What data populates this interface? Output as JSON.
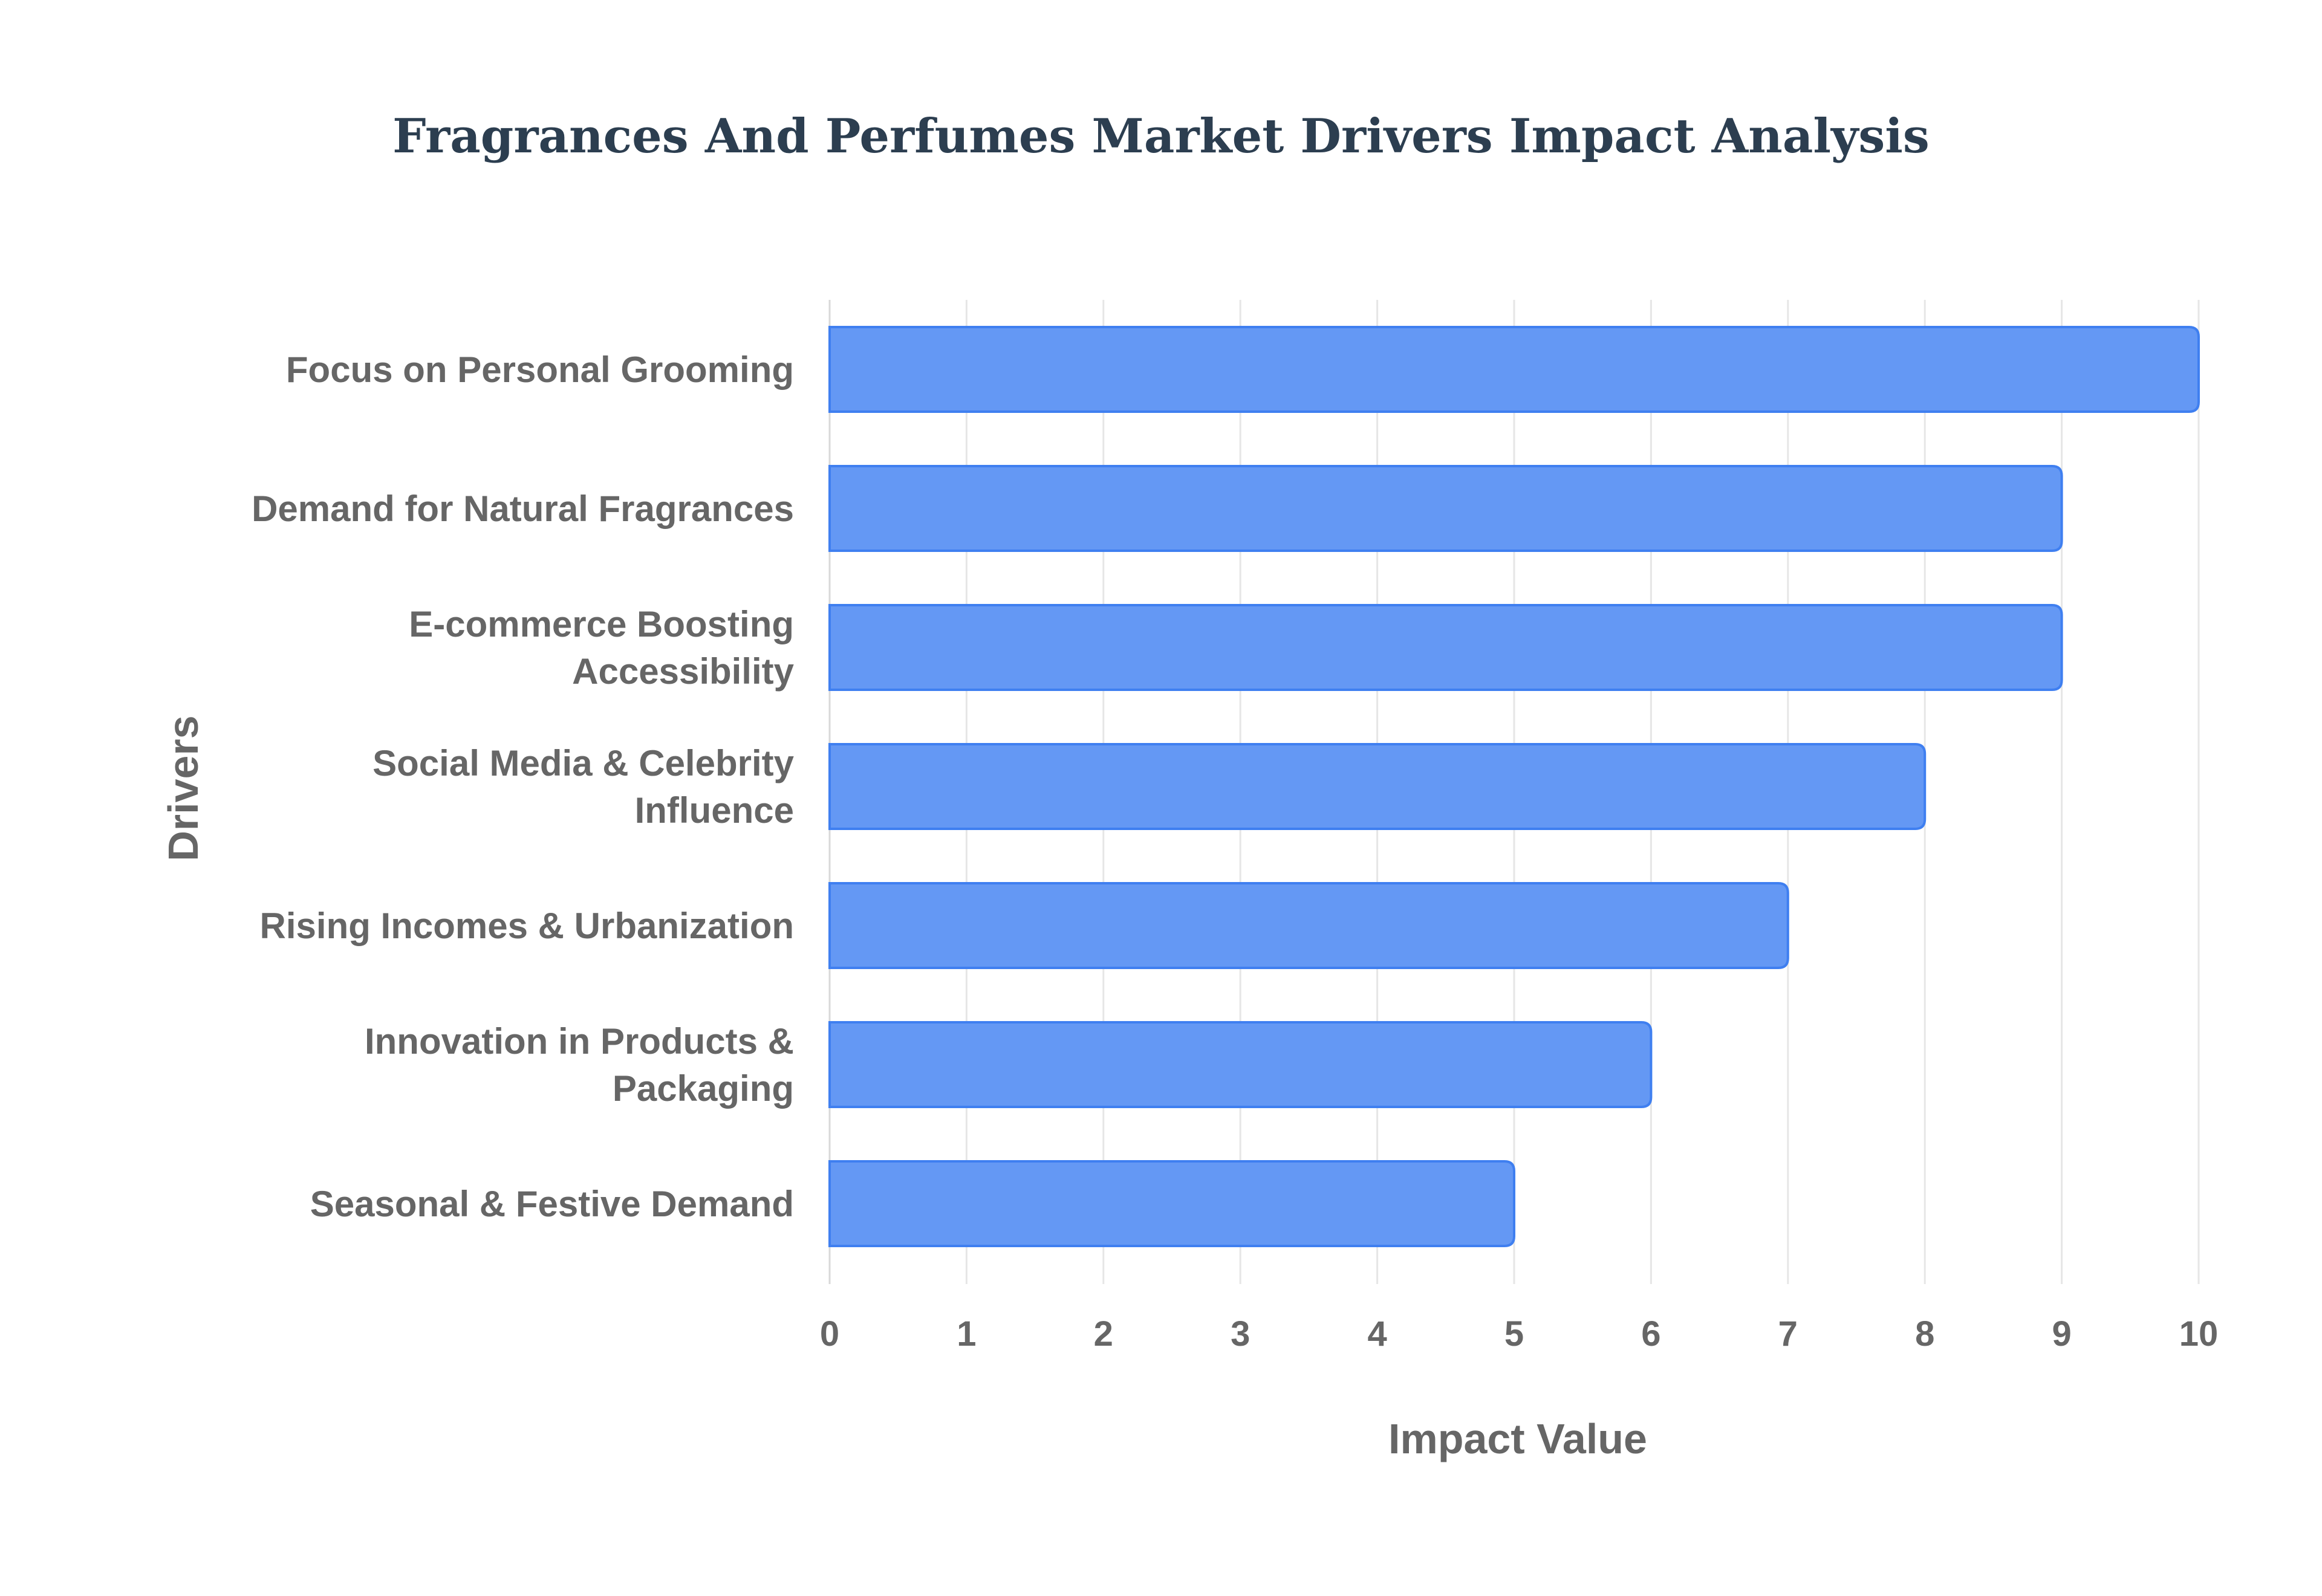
{
  "chart_data": {
    "type": "bar",
    "orientation": "horizontal",
    "title": "Fragrances And Perfumes Market Drivers Impact Analysis",
    "xlabel": "Impact Value",
    "ylabel": "Drivers",
    "xlim": [
      0,
      10
    ],
    "x_ticks": [
      "0",
      "1",
      "2",
      "3",
      "4",
      "5",
      "6",
      "7",
      "8",
      "9",
      "10"
    ],
    "grid": true,
    "categories": [
      [
        "Focus on Personal Grooming"
      ],
      [
        "Demand for Natural Fragrances"
      ],
      [
        "E-commerce Boosting",
        "Accessibility"
      ],
      [
        "Social Media & Celebrity",
        "Influence"
      ],
      [
        "Rising Incomes & Urbanization"
      ],
      [
        "Innovation in Products &",
        "Packaging"
      ],
      [
        "Seasonal & Festive Demand"
      ]
    ],
    "values": [
      10,
      9,
      9,
      8,
      7,
      6,
      5
    ],
    "colors": {
      "bar_fill": "#6498f4",
      "bar_stroke": "#3f7ff0",
      "title": "#2c3e50",
      "text": "#666666",
      "grid": "#e6e6e6"
    }
  }
}
